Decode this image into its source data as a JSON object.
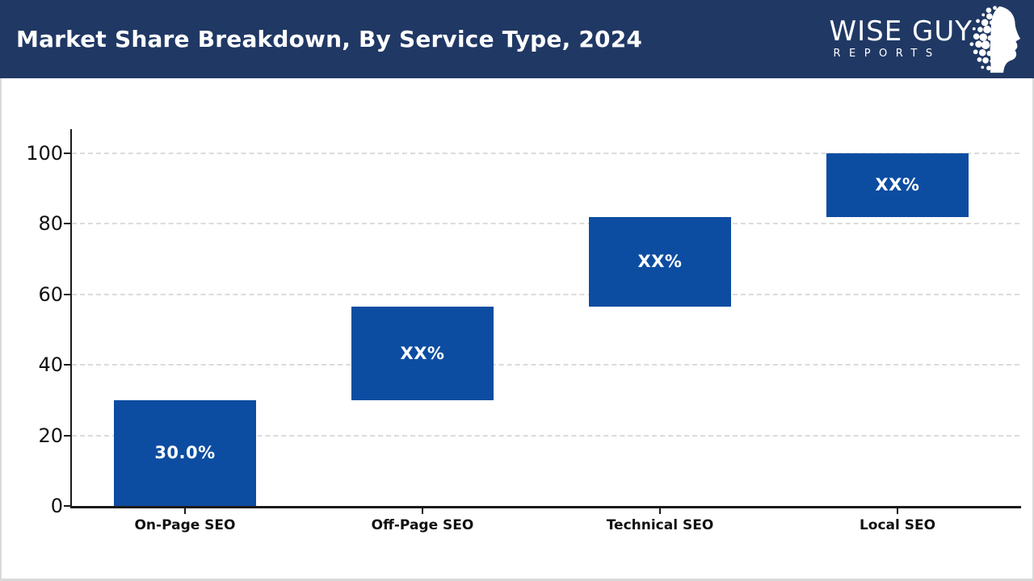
{
  "header": {
    "title": "Market Share Breakdown, By Service Type, 2024",
    "logo": {
      "line1": "WISE GUY",
      "line2": "REPORTS"
    }
  },
  "watermark": {
    "line1": "WISE GUY",
    "line2": "REPORTS"
  },
  "chart_data": {
    "type": "bar",
    "subtype": "waterfall-floating-bars",
    "title": "Market Share Breakdown, By Service Type, 2024",
    "categories": [
      "On-Page SEO",
      "Off-Page SEO",
      "Technical SEO",
      "Local SEO"
    ],
    "segments": [
      {
        "category": "On-Page SEO",
        "start": 0,
        "end": 30,
        "label": "30.0%"
      },
      {
        "category": "Off-Page SEO",
        "start": 30,
        "end": 56.5,
        "label": "XX%"
      },
      {
        "category": "Technical SEO",
        "start": 56.5,
        "end": 82,
        "label": "XX%"
      },
      {
        "category": "Local SEO",
        "start": 82,
        "end": 100,
        "label": "XX%"
      }
    ],
    "xlabel": "",
    "ylabel": "",
    "ylim": [
      0,
      100
    ],
    "yticks": [
      0,
      20,
      40,
      60,
      80,
      100
    ],
    "grid": "horizontal-dashed",
    "legend": "none"
  },
  "colors": {
    "header_bg": "#203864",
    "bar": "#0d4da1",
    "bar_label": "#ffffff",
    "grid": "#dcdcdc",
    "axis": "#1a1a1a",
    "watermark": "#f2f2f4",
    "card_border": "#d9d9d9"
  }
}
